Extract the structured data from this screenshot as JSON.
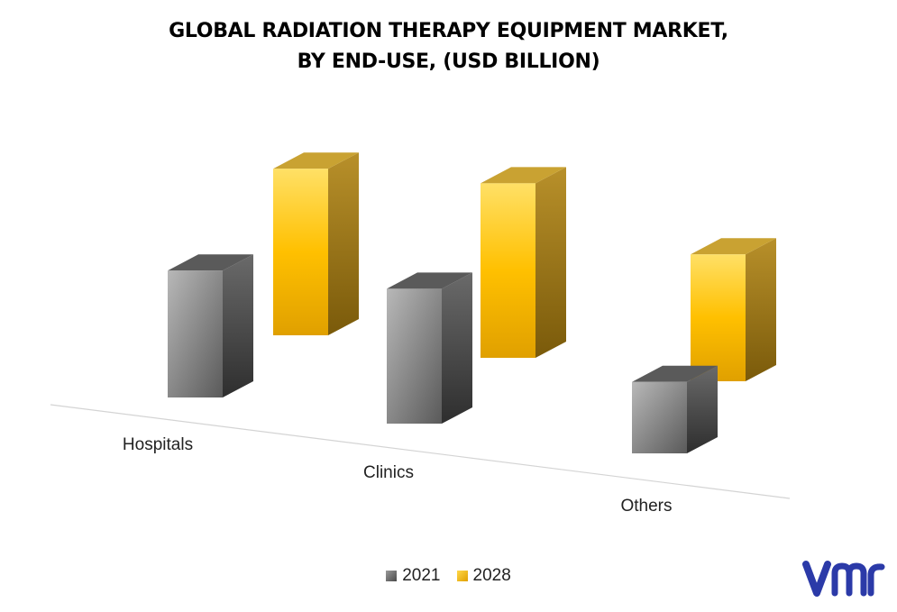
{
  "chart_data": {
    "type": "bar",
    "title": "GLOBAL RADIATION THERAPY EQUIPMENT MARKET, BY END-USE, (USD BILLION)",
    "title_lines": [
      "GLOBAL RADIATION THERAPY EQUIPMENT MARKET,",
      "BY END-USE, (USD BILLION)"
    ],
    "categories": [
      "Hospitals",
      "Clinics",
      "Others"
    ],
    "series": [
      {
        "name": "2021",
        "values": [
          3.2,
          3.4,
          1.8
        ],
        "color": "#8a8a8a"
      },
      {
        "name": "2028",
        "values": [
          4.2,
          4.4,
          3.2
        ],
        "color": "#ffc000"
      }
    ],
    "legend_position": "bottom",
    "grid": false,
    "style": "3d-column"
  },
  "colors": {
    "series_2021": "#8a8a8a",
    "series_2028": "#ffc000",
    "logo": "#2b3aa8"
  },
  "logo": {
    "icon": "vmr-logo-icon"
  }
}
